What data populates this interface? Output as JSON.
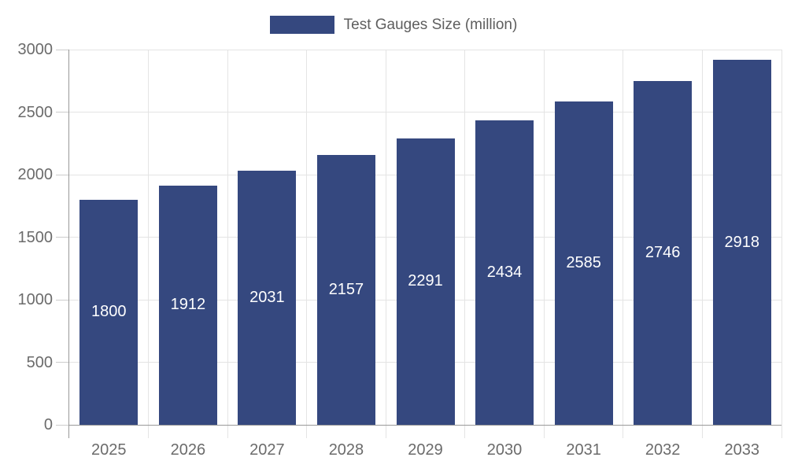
{
  "legend": {
    "label": "Test Gauges Size (million)",
    "position": "top"
  },
  "chart_data": {
    "type": "bar",
    "title": "Test Gauges Size (million)",
    "categories": [
      "2025",
      "2026",
      "2027",
      "2028",
      "2029",
      "2030",
      "2031",
      "2032",
      "2033"
    ],
    "values": [
      1800,
      1912,
      2031,
      2157,
      2291,
      2434,
      2585,
      2746,
      2918
    ],
    "series": [
      {
        "name": "Test Gauges Size (million)",
        "values": [
          1800,
          1912,
          2031,
          2157,
          2291,
          2434,
          2585,
          2746,
          2918
        ]
      }
    ],
    "xlabel": "",
    "ylabel": "",
    "ylim": [
      0,
      3000
    ],
    "yticks": [
      0,
      500,
      1000,
      1500,
      2000,
      2500,
      3000
    ],
    "grid": true,
    "legend_position": "top",
    "value_labels": "inside-center"
  },
  "colors": {
    "bar": "#35487F",
    "grid": "#e4e4e4",
    "axis": "#999999",
    "tick": "#cccccc",
    "axis_label": "#6b6b6b",
    "legend_text": "#5e5e5e",
    "value_label": "#ffffff",
    "background": "#ffffff"
  }
}
